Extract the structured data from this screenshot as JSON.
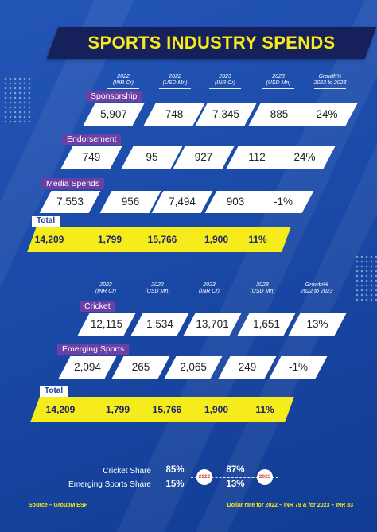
{
  "title": "SPORTS INDUSTRY SPENDS",
  "headers": [
    "2022\n(INR Cr)",
    "2022\n(USD Mn)",
    "2023\n(INR Cr)",
    "2023\n(USD Mn)",
    "Growth%\n2022 to 2023"
  ],
  "table1": {
    "rows": [
      {
        "label": "Sponsorship",
        "values": [
          "5,907",
          "748",
          "7,345",
          "885",
          "24%"
        ]
      },
      {
        "label": "Endorsement",
        "values": [
          "749",
          "95",
          "927",
          "112",
          "24%"
        ]
      },
      {
        "label": "Media Spends",
        "values": [
          "7,553",
          "956",
          "7,494",
          "903",
          "-1%"
        ]
      }
    ],
    "total": {
      "label": "Total",
      "values": [
        "14,209",
        "1,799",
        "15,766",
        "1,900",
        "11%"
      ]
    }
  },
  "table2": {
    "rows": [
      {
        "label": "Cricket",
        "values": [
          "12,115",
          "1,534",
          "13,701",
          "1,651",
          "13%"
        ]
      },
      {
        "label": "Emerging Sports",
        "values": [
          "2,094",
          "265",
          "2,065",
          "249",
          "-1%"
        ]
      }
    ],
    "total": {
      "label": "Total",
      "values": [
        "14,209",
        "1,799",
        "15,766",
        "1,900",
        "11%"
      ]
    }
  },
  "share": {
    "cricket_label": "Cricket Share",
    "emerging_label": "Emerging Sports Share",
    "y2022_cricket": "85%",
    "y2022_emerging": "15%",
    "y2023_cricket": "87%",
    "y2023_emerging": "13%",
    "badge_2022": "2022",
    "badge_2023": "2023"
  },
  "footer": {
    "source": "Source – GroupM ESP",
    "dollar_rate": "Dollar rate for 2022 – INR 79 & for 2023 – INR 83"
  },
  "colors": {
    "background": "#1a4aa8",
    "title_band": "#16205a",
    "accent_yellow": "#f6ec1c",
    "label_purple": "#6b3fa6"
  }
}
